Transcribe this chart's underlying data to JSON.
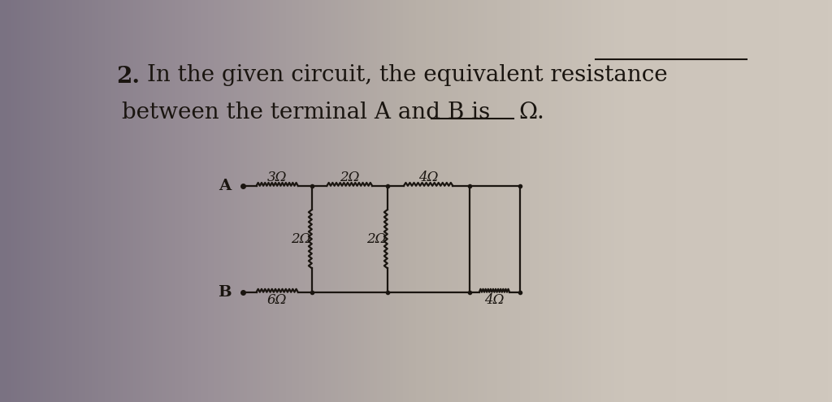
{
  "bg_color_left": "#918a9a",
  "bg_color_right": "#c8c0b8",
  "bg_color_mid": "#b0a8a0",
  "text_color": "#1a1510",
  "line_color": "#1a1510",
  "title_line1": "In the given circuit, the equivalent resistance",
  "title_line2": "between the terminal A and B is",
  "title_omega": "Ω.",
  "title_fontsize": 20,
  "number_label": "2.",
  "A_label": "A",
  "B_label": "B",
  "res_3": "3Ω",
  "res_2a": "2Ω",
  "res_4t": "4Ω",
  "res_2v1": "2Ω",
  "res_2v2": "2Ω",
  "res_6": "6Ω",
  "res_4b": "4Ω"
}
